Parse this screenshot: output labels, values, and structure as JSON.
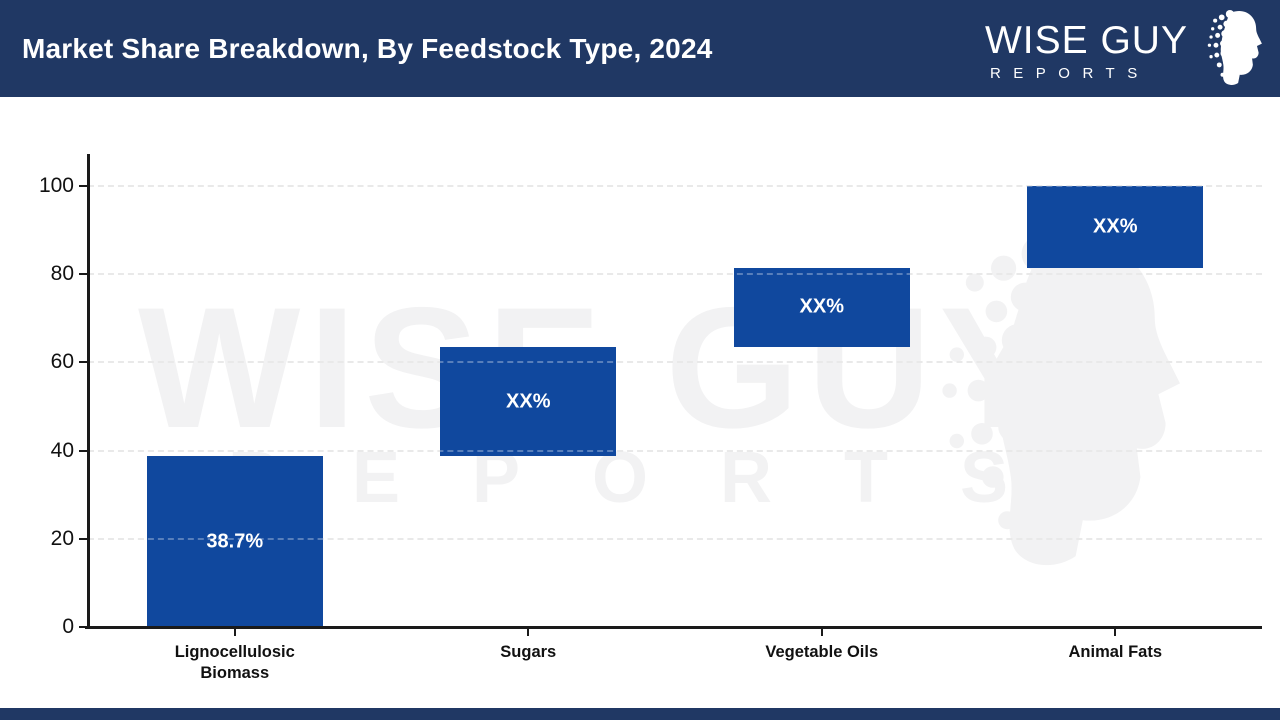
{
  "header": {
    "title": "Market Share Breakdown, By Feedstock Type, 2024",
    "logo": {
      "line1": "WISE GUY",
      "line2": "REPORTS"
    }
  },
  "watermark": {
    "line1": "WISE GUY",
    "line2": "REPORTS"
  },
  "colors": {
    "header_bg": "#203864",
    "footer_bg": "#203864",
    "bar": "#10489e",
    "bar_label_text": "#ffffff",
    "grid": "#e0e0e0",
    "axis": "#1a1a1a",
    "watermark": "#f2f2f3"
  },
  "chart_data": {
    "type": "bar",
    "subtype": "floating-waterfall",
    "title": "Market Share Breakdown, By Feedstock Type, 2024",
    "categories": [
      "Lignocellulosic Biomass",
      "Sugars",
      "Vegetable Oils",
      "Animal Fats"
    ],
    "series": [
      {
        "name": "Market Share %",
        "segments": [
          {
            "category": "Lignocellulosic Biomass",
            "start": 0,
            "end": 38.7,
            "label": "38.7%"
          },
          {
            "category": "Sugars",
            "start": 38.7,
            "end": 63.5,
            "label": "XX%"
          },
          {
            "category": "Vegetable Oils",
            "start": 63.5,
            "end": 81.5,
            "label": "XX%"
          },
          {
            "category": "Animal Fats",
            "start": 81.5,
            "end": 100,
            "label": "XX%"
          }
        ]
      }
    ],
    "xlabel": "",
    "ylabel": "",
    "ylim": [
      0,
      100
    ],
    "yticks": [
      0,
      20,
      40,
      60,
      80,
      100
    ],
    "grid": "horizontal-dashed",
    "legend_position": "none"
  }
}
